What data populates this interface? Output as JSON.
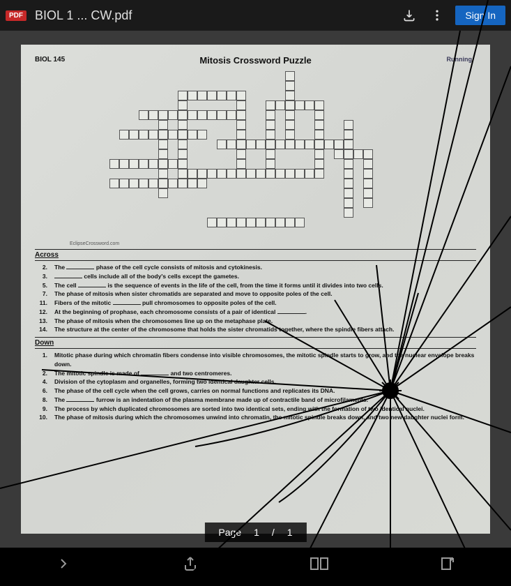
{
  "topbar": {
    "pdf_badge": "PDF",
    "filename": "BIOL 1 ... CW.pdf",
    "sign_in": "Sign In"
  },
  "doc": {
    "course": "BIOL 145",
    "title": "Mitosis Crossword Puzzle",
    "running": "Running",
    "source": "EclipseCrossword.com"
  },
  "across": {
    "heading": "Across",
    "clues": [
      {
        "n": "2.",
        "t": "The ______ phase of the cell cycle consists of mitosis and cytokinesis."
      },
      {
        "n": "3.",
        "t": "______ cells include all of the body's cells except the gametes."
      },
      {
        "n": "5.",
        "t": "The cell ______ is the sequence of events in the life of the cell, from the time it forms until it divides into two cells."
      },
      {
        "n": "7.",
        "t": "The phase of mitosis when sister chromatids are separated and move to opposite poles of the cell."
      },
      {
        "n": "11.",
        "t": "Fibers of the mitotic ______ pull chromosomes to opposite poles of the cell."
      },
      {
        "n": "12.",
        "t": "At the beginning of prophase, each chromosome consists of a pair of identical ______."
      },
      {
        "n": "13.",
        "t": "The phase of mitosis when the chromosomes line up on the metaphase plate."
      },
      {
        "n": "14.",
        "t": "The structure at the center of the chromosome that holds the sister chromatids together, where the spindle fibers attach."
      }
    ]
  },
  "down": {
    "heading": "Down",
    "clues": [
      {
        "n": "1.",
        "t": "Mitotic phase during which chromatin fibers condense into visible chromosomes, the mitotic spindle starts to grow, and the nuclear envelope breaks down."
      },
      {
        "n": "2.",
        "t": "The mitotic spindle is made of ______ and two centromeres."
      },
      {
        "n": "4.",
        "t": "Division of the cytoplasm and organelles, forming two identical daughter cells."
      },
      {
        "n": "6.",
        "t": "The phase of the cell cycle when the cell grows, carries on normal functions and replicates its DNA."
      },
      {
        "n": "8.",
        "t": "The ______ furrow is an indentation of the plasma membrane made up of contractile band of microfilaments."
      },
      {
        "n": "9.",
        "t": "The process by which duplicated chromosomes are sorted into two identical sets, ending with the formation of two identical nuclei."
      },
      {
        "n": "10.",
        "t": "The phase of mitosis during which the chromosomes unwind into chromatin, the mitotic spindle breaks down, and two new daughter nuclei form."
      }
    ]
  },
  "pager": {
    "label": "Page",
    "cur": "1",
    "sep": "/",
    "tot": "1"
  },
  "crossword": {
    "cell_size": 14,
    "grid_color": "#555",
    "cell_bg": "#e8eae5",
    "words": [
      {
        "r": 0,
        "c": 18,
        "len": 1,
        "dir": "h"
      },
      {
        "r": 1,
        "c": 18,
        "len": 1,
        "dir": "h"
      },
      {
        "r": 2,
        "c": 7,
        "len": 7,
        "dir": "h"
      },
      {
        "r": 2,
        "c": 18,
        "len": 1,
        "dir": "h"
      },
      {
        "r": 3,
        "c": 7,
        "len": 1,
        "dir": "h"
      },
      {
        "r": 3,
        "c": 13,
        "len": 1,
        "dir": "h"
      },
      {
        "r": 3,
        "c": 16,
        "len": 6,
        "dir": "h"
      },
      {
        "r": 4,
        "c": 3,
        "len": 11,
        "dir": "h"
      },
      {
        "r": 4,
        "c": 16,
        "len": 1,
        "dir": "h"
      },
      {
        "r": 4,
        "c": 18,
        "len": 1,
        "dir": "h"
      },
      {
        "r": 4,
        "c": 21,
        "len": 1,
        "dir": "h"
      },
      {
        "r": 5,
        "c": 5,
        "len": 1,
        "dir": "h"
      },
      {
        "r": 5,
        "c": 7,
        "len": 1,
        "dir": "h"
      },
      {
        "r": 5,
        "c": 13,
        "len": 1,
        "dir": "h"
      },
      {
        "r": 5,
        "c": 16,
        "len": 1,
        "dir": "h"
      },
      {
        "r": 5,
        "c": 18,
        "len": 1,
        "dir": "h"
      },
      {
        "r": 5,
        "c": 21,
        "len": 1,
        "dir": "h"
      },
      {
        "r": 5,
        "c": 24,
        "len": 1,
        "dir": "h"
      },
      {
        "r": 6,
        "c": 1,
        "len": 9,
        "dir": "h"
      },
      {
        "r": 6,
        "c": 13,
        "len": 1,
        "dir": "h"
      },
      {
        "r": 6,
        "c": 16,
        "len": 1,
        "dir": "h"
      },
      {
        "r": 6,
        "c": 18,
        "len": 1,
        "dir": "h"
      },
      {
        "r": 6,
        "c": 21,
        "len": 1,
        "dir": "h"
      },
      {
        "r": 6,
        "c": 24,
        "len": 1,
        "dir": "h"
      },
      {
        "r": 7,
        "c": 5,
        "len": 1,
        "dir": "h"
      },
      {
        "r": 7,
        "c": 7,
        "len": 1,
        "dir": "h"
      },
      {
        "r": 7,
        "c": 11,
        "len": 14,
        "dir": "h"
      },
      {
        "r": 8,
        "c": 5,
        "len": 1,
        "dir": "h"
      },
      {
        "r": 8,
        "c": 7,
        "len": 1,
        "dir": "h"
      },
      {
        "r": 8,
        "c": 13,
        "len": 1,
        "dir": "h"
      },
      {
        "r": 8,
        "c": 16,
        "len": 1,
        "dir": "h"
      },
      {
        "r": 8,
        "c": 21,
        "len": 1,
        "dir": "h"
      },
      {
        "r": 8,
        "c": 23,
        "len": 4,
        "dir": "h"
      },
      {
        "r": 9,
        "c": 0,
        "len": 8,
        "dir": "h"
      },
      {
        "r": 9,
        "c": 13,
        "len": 1,
        "dir": "h"
      },
      {
        "r": 9,
        "c": 16,
        "len": 1,
        "dir": "h"
      },
      {
        "r": 9,
        "c": 21,
        "len": 1,
        "dir": "h"
      },
      {
        "r": 9,
        "c": 24,
        "len": 1,
        "dir": "h"
      },
      {
        "r": 9,
        "c": 26,
        "len": 1,
        "dir": "h"
      },
      {
        "r": 10,
        "c": 5,
        "len": 1,
        "dir": "h"
      },
      {
        "r": 10,
        "c": 7,
        "len": 15,
        "dir": "h"
      },
      {
        "r": 10,
        "c": 24,
        "len": 1,
        "dir": "h"
      },
      {
        "r": 10,
        "c": 26,
        "len": 1,
        "dir": "h"
      },
      {
        "r": 11,
        "c": 0,
        "len": 10,
        "dir": "h"
      },
      {
        "r": 11,
        "c": 24,
        "len": 1,
        "dir": "h"
      },
      {
        "r": 11,
        "c": 26,
        "len": 1,
        "dir": "h"
      },
      {
        "r": 12,
        "c": 5,
        "len": 1,
        "dir": "h"
      },
      {
        "r": 12,
        "c": 24,
        "len": 1,
        "dir": "h"
      },
      {
        "r": 12,
        "c": 26,
        "len": 1,
        "dir": "h"
      },
      {
        "r": 13,
        "c": 24,
        "len": 1,
        "dir": "h"
      },
      {
        "r": 13,
        "c": 26,
        "len": 1,
        "dir": "h"
      },
      {
        "r": 14,
        "c": 24,
        "len": 1,
        "dir": "h"
      },
      {
        "r": 15,
        "c": 10,
        "len": 10,
        "dir": "h"
      }
    ]
  }
}
